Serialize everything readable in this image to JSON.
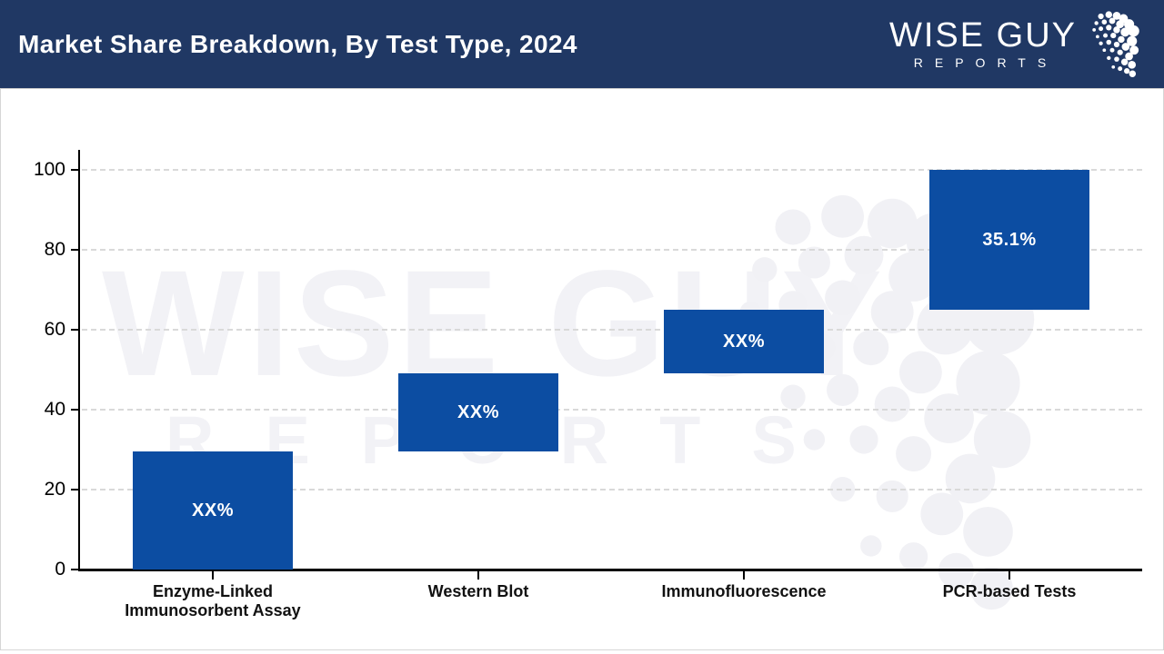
{
  "header": {
    "title": "Market Share Breakdown, By Test Type, 2024",
    "logo": {
      "name": "WISE GUY",
      "sub": "REPORTS"
    }
  },
  "watermark": {
    "line1": "WISE GUY",
    "line2": "REPORTS"
  },
  "chart_data": {
    "type": "bar",
    "subtype": "waterfall",
    "title": "Market Share Breakdown, By Test Type, 2024",
    "xlabel": "",
    "ylabel": "",
    "categories": [
      "Enzyme-Linked Immunosorbent Assay",
      "Western Blot",
      "Immunofluorescence",
      "PCR-based Tests"
    ],
    "segments": [
      {
        "category": "Enzyme-Linked Immunosorbent Assay",
        "start": 0,
        "end": 29.5,
        "label": "XX%"
      },
      {
        "category": "Western Blot",
        "start": 29.5,
        "end": 49.0,
        "label": "XX%"
      },
      {
        "category": "Immunofluorescence",
        "start": 49.0,
        "end": 64.9,
        "label": "XX%"
      },
      {
        "category": "PCR-based Tests",
        "start": 64.9,
        "end": 100,
        "label": "35.1%"
      }
    ],
    "y_ticks": [
      0,
      20,
      40,
      60,
      80,
      100
    ],
    "ylim": [
      0,
      105
    ],
    "grid": "dashed-horizontal",
    "legend": "none",
    "bar_color": "#0c4da2",
    "bar_label_color": "#ffffff",
    "axis_color": "#000000",
    "gridline_color": "#d9d9d9",
    "header_bg_color": "#203864",
    "watermark_color": "#f2f2f6"
  }
}
